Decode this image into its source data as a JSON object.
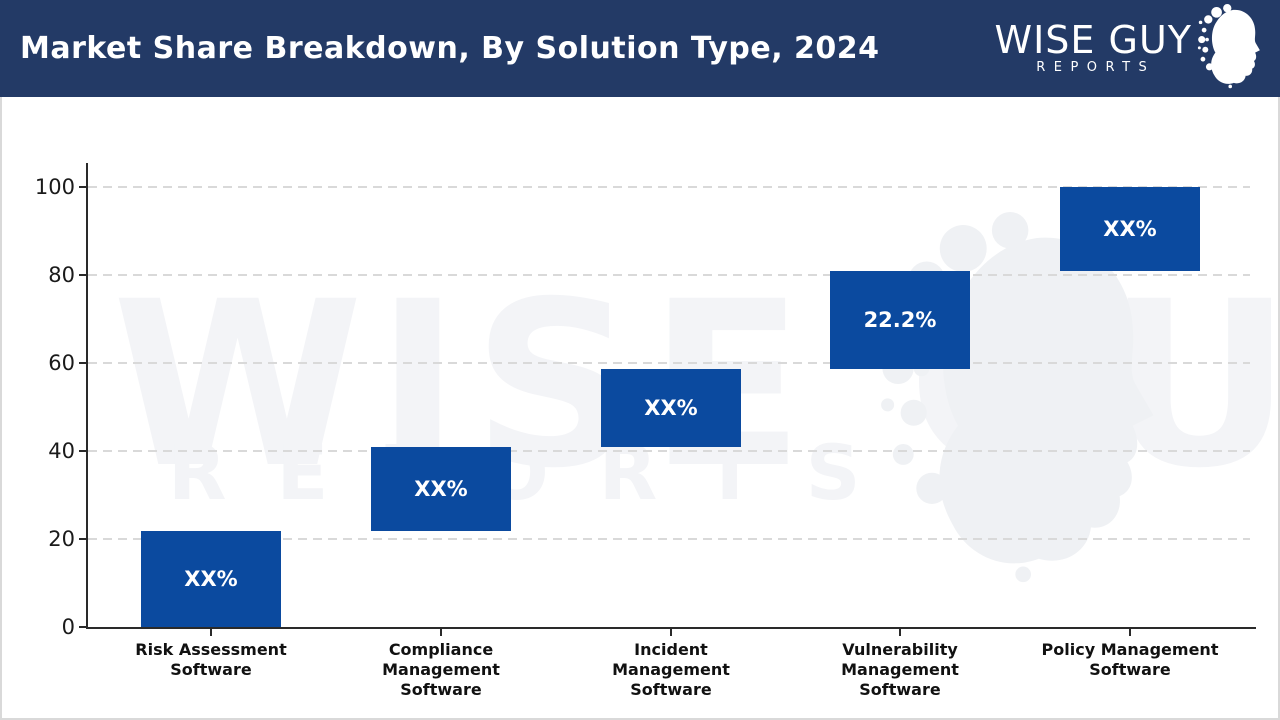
{
  "header": {
    "title": "Market Share Breakdown, By Solution Type, 2024",
    "logo": {
      "line1": "WISE GUY",
      "line2": "REPORTS"
    }
  },
  "watermark": {
    "line1": "WISE GUY",
    "line2": "REPORTS",
    "head_icon": "dotted-head-profile"
  },
  "colors": {
    "header_bg": "#233a66",
    "bar": "#0b4a9f",
    "bar_label": "#ffffff",
    "grid": "#d9d9d9",
    "axis": "#2a2a2a",
    "watermark": "#f3f4f7"
  },
  "chart_data": {
    "type": "bar",
    "subtype": "waterfall-stacked-percentage",
    "title": "Market Share Breakdown, By Solution Type, 2024",
    "xlabel": "",
    "ylabel": "",
    "ylim": [
      0,
      100
    ],
    "yticks": [
      0,
      20,
      40,
      60,
      80,
      100
    ],
    "grid": "horizontal dashed",
    "legend": "none",
    "categories": [
      [
        "Risk Assessment",
        "Software"
      ],
      [
        "Compliance",
        "Management",
        "Software"
      ],
      [
        "Incident",
        "Management",
        "Software"
      ],
      [
        "Vulnerability",
        "Management",
        "Software"
      ],
      [
        "Policy Management",
        "Software"
      ]
    ],
    "segments": [
      {
        "category": "Risk Assessment Software",
        "start": 0,
        "end": 21.8,
        "value": 21.8,
        "label": "XX%"
      },
      {
        "category": "Compliance Management Software",
        "start": 21.8,
        "end": 40.9,
        "value": 19.1,
        "label": "XX%"
      },
      {
        "category": "Incident Management Software",
        "start": 40.9,
        "end": 58.7,
        "value": 17.8,
        "label": "XX%"
      },
      {
        "category": "Vulnerability Management Software",
        "start": 58.7,
        "end": 80.9,
        "value": 22.2,
        "label": "22.2%"
      },
      {
        "category": "Policy Management Software",
        "start": 80.9,
        "end": 100,
        "value": 19.1,
        "label": "XX%"
      }
    ]
  }
}
